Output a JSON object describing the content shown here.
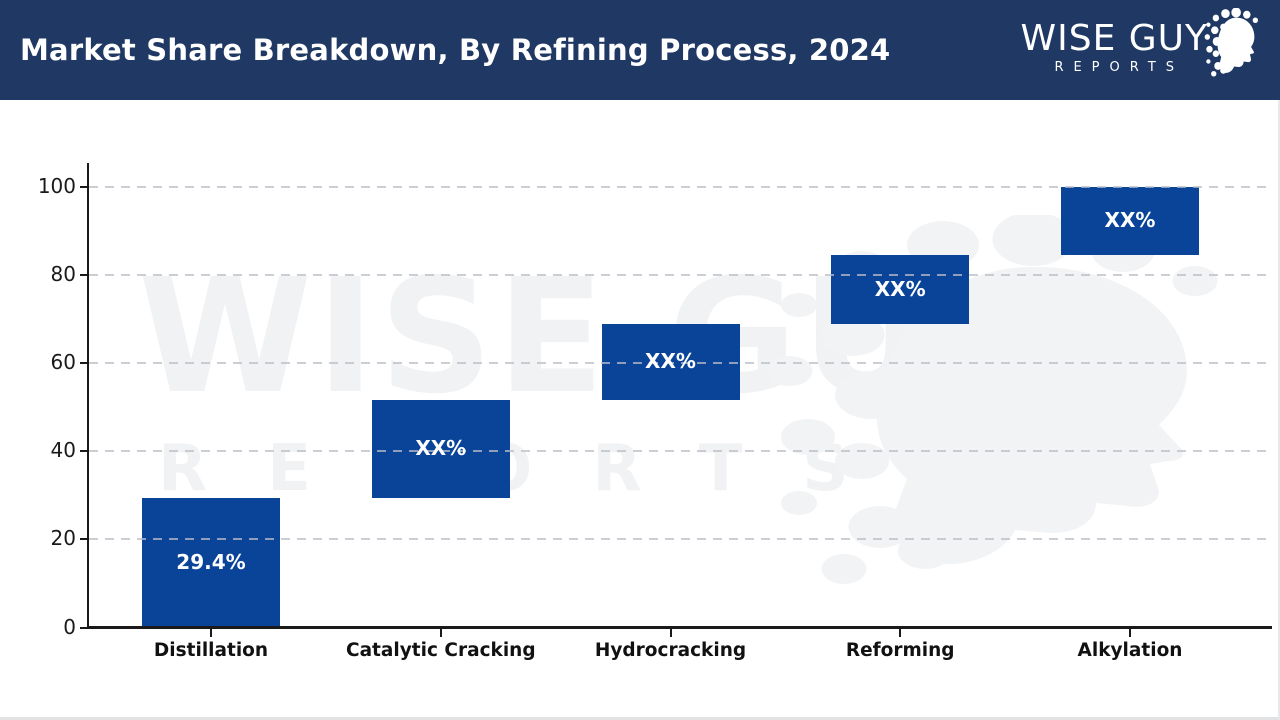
{
  "header": {
    "title": "Market Share Breakdown, By Refining Process, 2024",
    "logo": {
      "line1": "WISE GUY",
      "line2": "REPORTS"
    }
  },
  "watermark": {
    "line1": "WISE GUY",
    "line2": "REPORTS"
  },
  "chart_data": {
    "type": "bar",
    "subtype": "waterfall",
    "title": "Market Share Breakdown, By Refining Process, 2024",
    "categories": [
      "Distillation",
      "Catalytic Cracking",
      "Hydrocracking",
      "Reforming",
      "Alkylation"
    ],
    "segments": [
      {
        "category": "Distillation",
        "start": 0,
        "end": 29.4,
        "label": "29.4%"
      },
      {
        "category": "Catalytic Cracking",
        "start": 29.4,
        "end": 51.6,
        "label": "XX%"
      },
      {
        "category": "Hydrocracking",
        "start": 51.6,
        "end": 68.8,
        "label": "XX%"
      },
      {
        "category": "Reforming",
        "start": 68.8,
        "end": 84.6,
        "label": "XX%"
      },
      {
        "category": "Alkylation",
        "start": 84.6,
        "end": 100,
        "label": "XX%"
      }
    ],
    "yticks": [
      0,
      20,
      40,
      60,
      80,
      100
    ],
    "ylim": [
      0,
      105
    ],
    "xlabel": "",
    "ylabel": "",
    "grid": "dashed-horizontal-over-bars",
    "legend": "none",
    "bar_color": "#0a4499",
    "bar_label_color": "#ffffff",
    "header_color": "#1f3864",
    "watermark_color": "#f1f2f4"
  }
}
